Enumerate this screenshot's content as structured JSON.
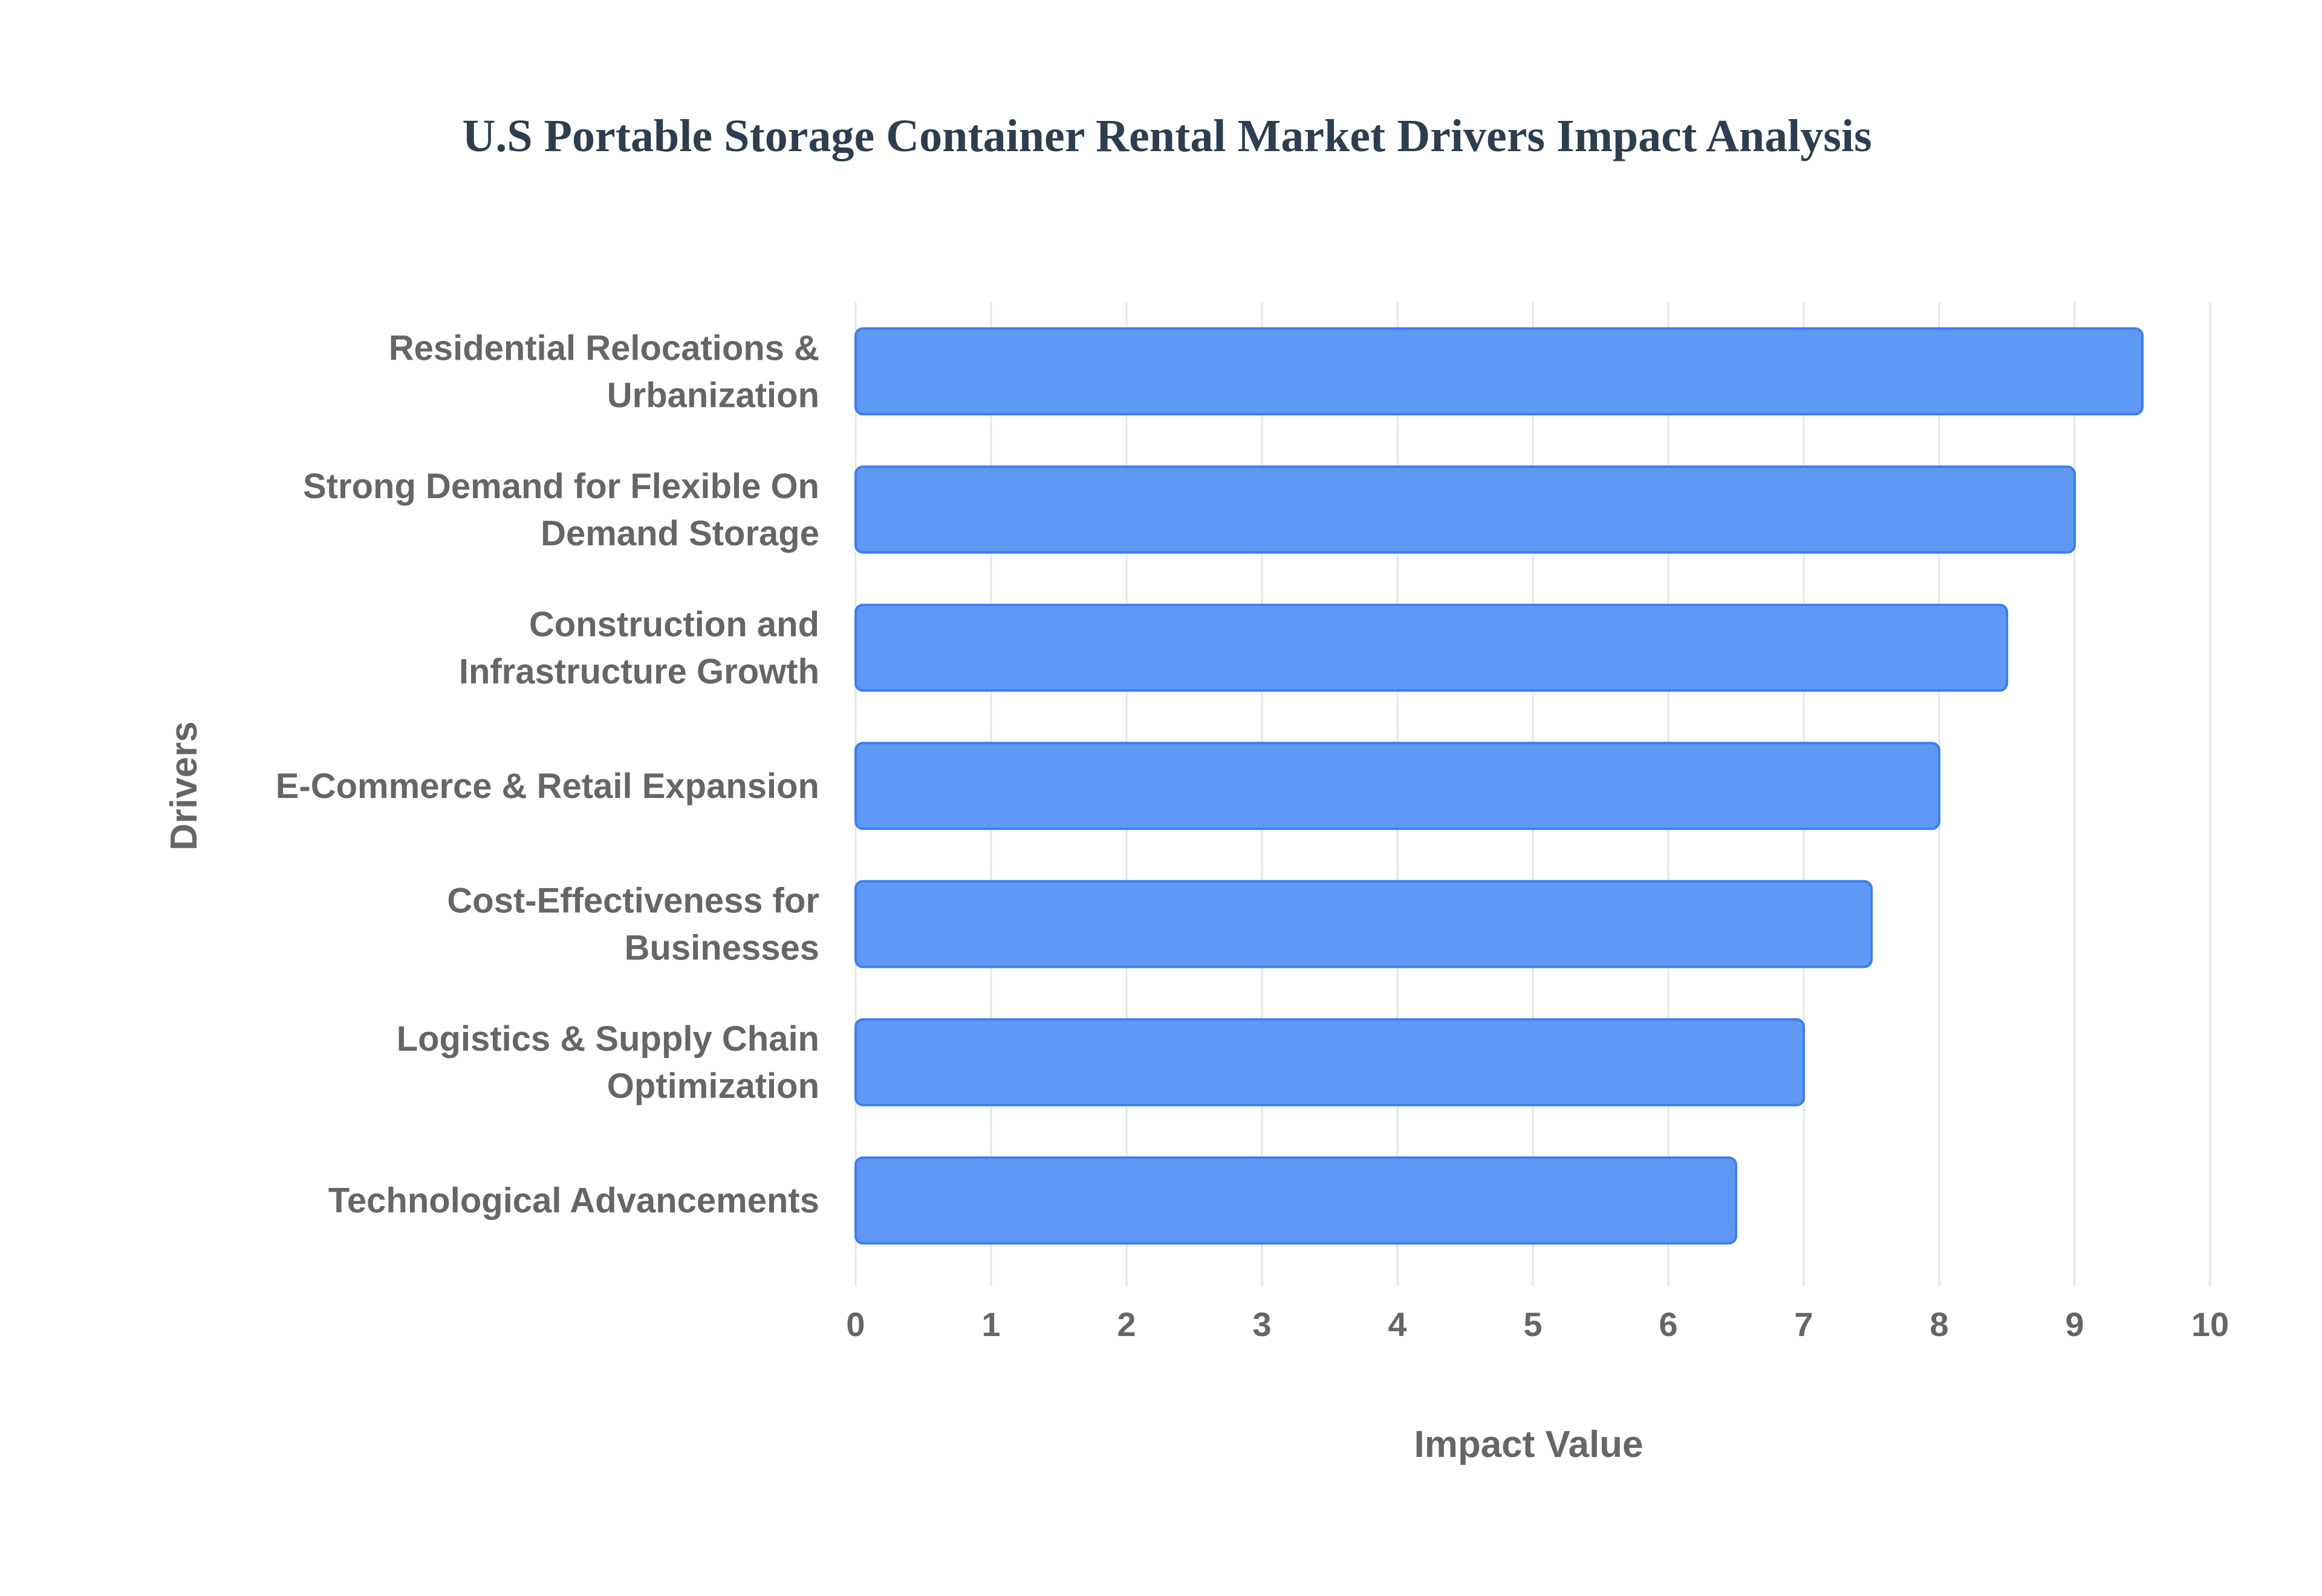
{
  "chart_data": {
    "type": "bar",
    "orientation": "horizontal",
    "title": "U.S Portable Storage Container Rental Market Drivers Impact Analysis",
    "xlabel": "Impact Value",
    "ylabel": "Drivers",
    "categories": [
      [
        "Residential Relocations &",
        "Urbanization"
      ],
      [
        "Strong Demand for Flexible On",
        "Demand Storage"
      ],
      [
        "Construction and",
        "Infrastructure Growth"
      ],
      [
        "E-Commerce & Retail Expansion"
      ],
      [
        "Cost-Effectiveness for",
        "Businesses"
      ],
      [
        "Logistics & Supply Chain",
        "Optimization"
      ],
      [
        "Technological Advancements"
      ]
    ],
    "values": [
      9.5,
      9.0,
      8.5,
      8.0,
      7.5,
      7.0,
      6.5
    ],
    "xlim": [
      0,
      10
    ],
    "xticks": [
      "0",
      "1",
      "2",
      "3",
      "4",
      "5",
      "6",
      "7",
      "8",
      "9",
      "10"
    ],
    "grid": true,
    "legend": "none",
    "colors": {
      "bar_fill": "#6098f5",
      "bar_stroke": "#3f7ef0",
      "grid": "#e6e6e6",
      "text": "#666666",
      "title": "#2c3e50"
    }
  }
}
